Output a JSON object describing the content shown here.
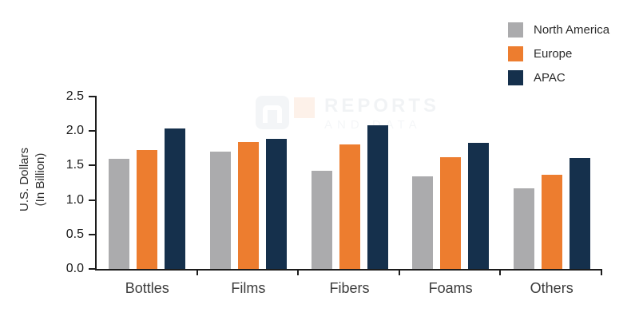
{
  "chart_data": {
    "type": "bar",
    "title": "",
    "xlabel": "",
    "ylabel_line1": "U.S. Dollars",
    "ylabel_line2": "(In Billion)",
    "categories": [
      "Bottles",
      "Films",
      "Fibers",
      "Foams",
      "Others"
    ],
    "series": [
      {
        "name": "North America",
        "color": "#ababad",
        "values": [
          1.6,
          1.7,
          1.42,
          1.34,
          1.17
        ]
      },
      {
        "name": "Europe",
        "color": "#ed7d2f",
        "values": [
          1.72,
          1.84,
          1.8,
          1.62,
          1.37
        ]
      },
      {
        "name": "APAC",
        "color": "#15304c",
        "values": [
          2.04,
          1.89,
          2.08,
          1.83,
          1.61
        ]
      }
    ],
    "ylim": [
      0,
      2.5
    ],
    "yticks": [
      0.0,
      0.5,
      1.0,
      1.5,
      2.0,
      2.5
    ],
    "ytick_labels": [
      "0.0",
      "0.5",
      "1.0",
      "1.5",
      "2.0",
      "2.5"
    ],
    "grid": false,
    "legend_position": "top-right",
    "axis_color": "#1c1c1c"
  },
  "watermark": {
    "line1": "REPORTS",
    "line2": "AND DATA"
  }
}
